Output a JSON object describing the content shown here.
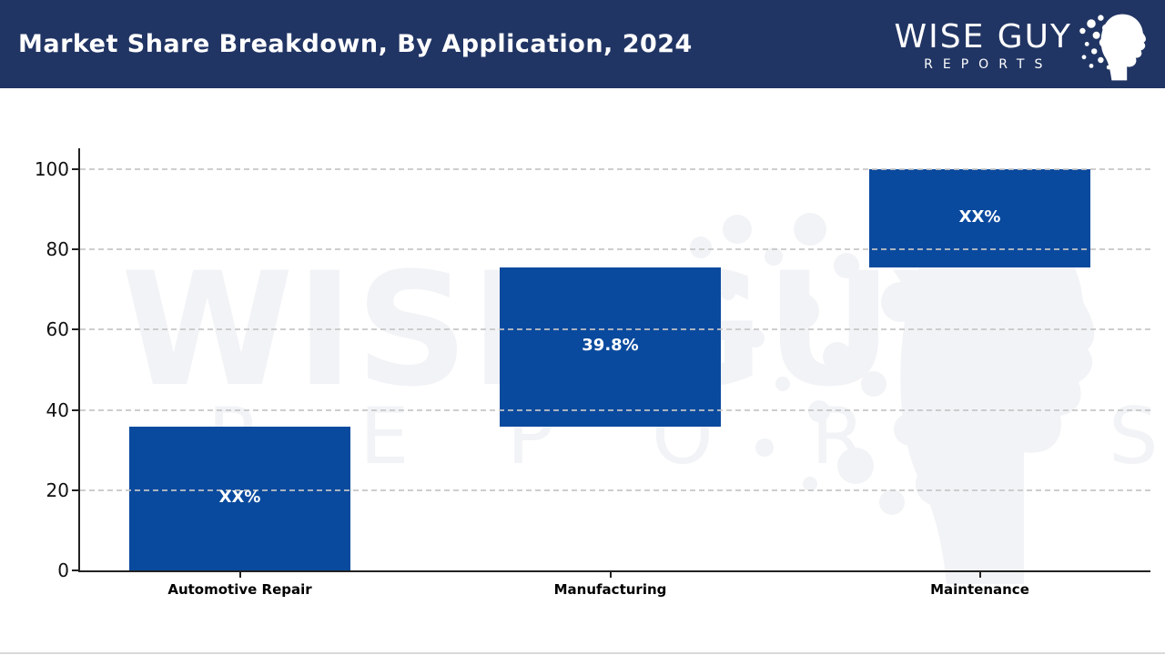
{
  "header": {
    "title": "Market Share Breakdown, By Application, 2024",
    "background_color": "#213564",
    "logo": {
      "line1": "WISE GUY",
      "line2": "REPORTS",
      "face_icon": "dotted-head-profile"
    }
  },
  "watermark": {
    "line1": "WISE GUY",
    "line2": "R E P O R T S",
    "color": "#f2f3f6"
  },
  "chart_data": {
    "type": "bar",
    "subtype": "floating-waterfall",
    "title": "Market Share Breakdown, By Application, 2024",
    "categories": [
      "Automotive Repair",
      "Manufacturing",
      "Maintenance"
    ],
    "bars": [
      {
        "category": "Automotive Repair",
        "start": 0,
        "end": 35.8,
        "label": "XX%"
      },
      {
        "category": "Manufacturing",
        "start": 35.8,
        "end": 75.6,
        "label": "39.8%"
      },
      {
        "category": "Maintenance",
        "start": 75.6,
        "end": 100,
        "label": "XX%"
      }
    ],
    "yticks": [
      0,
      20,
      40,
      60,
      80,
      100
    ],
    "ylim": [
      0,
      100
    ],
    "xlabel": "",
    "ylabel": "",
    "grid": "horizontal-dashed",
    "legend": "none",
    "bar_color": "#0a4a9e",
    "bar_label_color": "#ffffff",
    "gridline_color": "#c6c6c6",
    "axis_color": "#222222"
  }
}
